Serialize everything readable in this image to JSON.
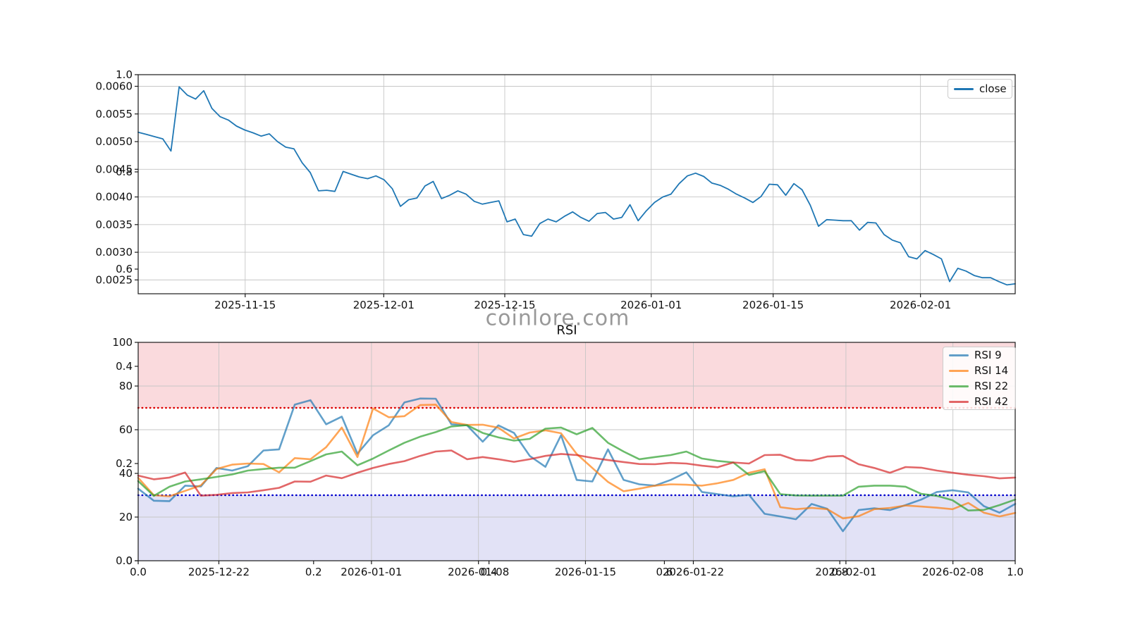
{
  "watermark": "coinlore.com",
  "rsi_title": "RSI",
  "colors": {
    "close": "#1f77b4",
    "rsi9": "#1f77b4",
    "rsi14": "#ff7f0e",
    "rsi22": "#2ca02c",
    "rsi42": "#d62728",
    "overbought_band": "#fadadd",
    "oversold_band": "#e2e2f6",
    "overbought_line": "#dd0000",
    "oversold_line": "#0000cd",
    "grid": "#c6c6c6",
    "spine": "#1a1a1a",
    "tick_text": "#111111",
    "watermark_text": "#999999"
  },
  "overlay_axis": {
    "x_ticks": [
      {
        "label": "0.0",
        "f": 0.0
      },
      {
        "label": "0.2",
        "f": 0.2
      },
      {
        "label": "0.4",
        "f": 0.4
      },
      {
        "label": "0.6",
        "f": 0.6
      },
      {
        "label": "0.8",
        "f": 0.8
      },
      {
        "label": "1.0",
        "f": 1.0
      }
    ],
    "y_ticks": [
      {
        "label": "1.0",
        "f": 0.0
      },
      {
        "label": "0.8",
        "f": 0.2
      },
      {
        "label": "0.6",
        "f": 0.4
      },
      {
        "label": "0.4",
        "f": 0.6
      },
      {
        "label": "0.2",
        "f": 0.8
      },
      {
        "label": "0.0",
        "f": 1.0
      }
    ]
  },
  "chart_data": [
    {
      "id": "price",
      "type": "line",
      "title": "",
      "ylim": [
        0.00225,
        0.00621
      ],
      "ylabel": "",
      "xlabel": "",
      "grid": true,
      "legend_position": "upper right",
      "y_ticks": [
        {
          "value": 0.006,
          "label": "0.0060"
        },
        {
          "value": 0.0055,
          "label": "0.0055"
        },
        {
          "value": 0.005,
          "label": "0.0050"
        },
        {
          "value": 0.0045,
          "label": "0.0045"
        },
        {
          "value": 0.004,
          "label": "0.0040"
        },
        {
          "value": 0.0035,
          "label": "0.0035"
        },
        {
          "value": 0.003,
          "label": "0.0030"
        },
        {
          "value": 0.0025,
          "label": "0.0025"
        }
      ],
      "x_ticks": [
        {
          "label": "2025-11-15",
          "f": 0.122
        },
        {
          "label": "2025-12-01",
          "f": 0.28
        },
        {
          "label": "2025-12-15",
          "f": 0.418
        },
        {
          "label": "2026-01-01",
          "f": 0.585
        },
        {
          "label": "2026-01-15",
          "f": 0.724
        },
        {
          "label": "2026-02-01",
          "f": 0.892
        }
      ],
      "series": [
        {
          "name": "close",
          "color": "#1f77b4",
          "opacity": 1,
          "width": 1.8,
          "values": [
            0.00517,
            0.00513,
            0.00509,
            0.00505,
            0.00483,
            0.00599,
            0.00584,
            0.00577,
            0.00592,
            0.0056,
            0.00545,
            0.00539,
            0.00528,
            0.00521,
            0.00516,
            0.0051,
            0.00514,
            0.005,
            0.0049,
            0.00487,
            0.00462,
            0.00444,
            0.00411,
            0.00412,
            0.0041,
            0.00446,
            0.00441,
            0.00436,
            0.00433,
            0.00438,
            0.00431,
            0.00415,
            0.00383,
            0.00395,
            0.00398,
            0.0042,
            0.00428,
            0.00397,
            0.00403,
            0.00411,
            0.00405,
            0.00392,
            0.00387,
            0.0039,
            0.00393,
            0.00355,
            0.0036,
            0.00332,
            0.00329,
            0.00352,
            0.0036,
            0.00355,
            0.00365,
            0.00373,
            0.00363,
            0.00356,
            0.0037,
            0.00372,
            0.0036,
            0.00363,
            0.00386,
            0.00357,
            0.00375,
            0.0039,
            0.004,
            0.00405,
            0.00424,
            0.00438,
            0.00443,
            0.00437,
            0.00425,
            0.00421,
            0.00414,
            0.00405,
            0.00398,
            0.0039,
            0.00401,
            0.00423,
            0.00422,
            0.00403,
            0.00424,
            0.00413,
            0.00385,
            0.00347,
            0.00359,
            0.00358,
            0.00357,
            0.00357,
            0.0034,
            0.00354,
            0.00353,
            0.00332,
            0.00322,
            0.00317,
            0.00292,
            0.00288,
            0.00303,
            0.00296,
            0.00288,
            0.00247,
            0.00271,
            0.00266,
            0.00258,
            0.00254,
            0.00254,
            0.00247,
            0.00241,
            0.00243
          ]
        }
      ]
    },
    {
      "id": "rsi",
      "type": "line",
      "title": "RSI",
      "ylim": [
        0,
        100
      ],
      "grid": true,
      "legend_position": "upper right",
      "overbought_level": 70,
      "oversold_level": 30,
      "bands": [
        {
          "from": 70,
          "to": 100,
          "color": "#fadadd"
        },
        {
          "from": 0,
          "to": 30,
          "color": "#e2e2f6"
        }
      ],
      "hlines": [
        {
          "value": 70,
          "color": "#dd0000",
          "style": "dotted"
        },
        {
          "value": 30,
          "color": "#0000cd",
          "style": "dotted"
        }
      ],
      "y_ticks": [
        {
          "value": 100,
          "label": "100"
        },
        {
          "value": 80,
          "label": "80"
        },
        {
          "value": 60,
          "label": "60"
        },
        {
          "value": 40,
          "label": "40"
        },
        {
          "value": 20,
          "label": "20"
        },
        {
          "value": 0,
          "label": "0"
        }
      ],
      "x_ticks": [
        {
          "label": "2025-12-22",
          "f": 0.092
        },
        {
          "label": "2026-01-01",
          "f": 0.266
        },
        {
          "label": "2026-01-08",
          "f": 0.388
        },
        {
          "label": "2026-01-15",
          "f": 0.51
        },
        {
          "label": "2026-01-22",
          "f": 0.633
        },
        {
          "label": "2026-02-01",
          "f": 0.807
        },
        {
          "label": "2026-02-08",
          "f": 0.929
        }
      ],
      "series": [
        {
          "name": "RSI 9",
          "color": "#1f77b4",
          "opacity": 0.7,
          "width": 2.6,
          "values": [
            33,
            27.5,
            27.3,
            34.4,
            34,
            42.5,
            41.3,
            43.3,
            50.5,
            51,
            71.5,
            73.5,
            62.5,
            66,
            49,
            57.5,
            62,
            72.5,
            74.3,
            74.2,
            62.5,
            62,
            54.5,
            62,
            58.5,
            48,
            43,
            57.5,
            37,
            36.3,
            51,
            37,
            35,
            34.4,
            37,
            40.5,
            31.5,
            30.5,
            29.5,
            30.2,
            21.5,
            20.3,
            19,
            26,
            23.8,
            13.5,
            23.2,
            24,
            23.2,
            25.5,
            28,
            31.5,
            32.3,
            31.3,
            25,
            22,
            26
          ]
        },
        {
          "name": "RSI 14",
          "color": "#ff7f0e",
          "opacity": 0.7,
          "width": 2.6,
          "values": [
            38,
            30,
            29.5,
            32,
            34.5,
            42,
            44,
            44.5,
            44.3,
            40.5,
            47,
            46.5,
            52,
            61,
            47.5,
            69.7,
            65.7,
            66.2,
            71.3,
            71.5,
            63.5,
            62.2,
            62.3,
            60.9,
            56,
            58.7,
            59.7,
            58.4,
            48.9,
            42.5,
            36.1,
            31.8,
            33,
            34.4,
            35,
            34.8,
            34.4,
            35.5,
            37,
            40.3,
            41.9,
            24.5,
            23.6,
            24.2,
            23.6,
            19.4,
            20.4,
            23.6,
            24.2,
            25.3,
            24.8,
            24.3,
            23.6,
            26.5,
            22,
            20.3,
            21.9
          ]
        },
        {
          "name": "RSI 22",
          "color": "#2ca02c",
          "opacity": 0.7,
          "width": 2.6,
          "values": [
            36.5,
            29.7,
            33.9,
            36.3,
            37.3,
            38.4,
            39.5,
            41.3,
            42,
            42.6,
            42.6,
            45.6,
            48.7,
            50,
            43.7,
            46.8,
            50.5,
            54,
            56.8,
            58.9,
            61.5,
            62.1,
            58.5,
            56.5,
            55,
            55.8,
            60.5,
            61,
            57.9,
            60.8,
            54,
            50,
            46.5,
            47.5,
            48.4,
            50,
            46.8,
            45.7,
            45,
            39.3,
            41,
            30.5,
            29.9,
            29.8,
            29.8,
            29.8,
            33.9,
            34.4,
            34.4,
            33.9,
            30.6,
            29.7,
            27.7,
            23,
            23.3,
            25.5,
            28
          ]
        },
        {
          "name": "RSI 42",
          "color": "#d62728",
          "opacity": 0.7,
          "width": 2.6,
          "values": [
            39,
            37.3,
            38.1,
            40.4,
            29.8,
            30.2,
            31,
            31.3,
            32.3,
            33.4,
            36.3,
            36.2,
            39,
            37.8,
            40.3,
            42.5,
            44.3,
            45.6,
            48,
            50,
            50.5,
            46.5,
            47.5,
            46.5,
            45.3,
            46.5,
            48,
            48.9,
            48.4,
            47.1,
            46.1,
            45.2,
            44.3,
            44.2,
            44.8,
            44.5,
            43.5,
            42.8,
            45,
            44.5,
            48.4,
            48.5,
            46.1,
            45.8,
            47.7,
            48,
            44.2,
            42.5,
            40.3,
            42.9,
            42.6,
            41.3,
            40.3,
            39.4,
            38.7,
            37.7,
            38.1
          ]
        }
      ]
    }
  ]
}
